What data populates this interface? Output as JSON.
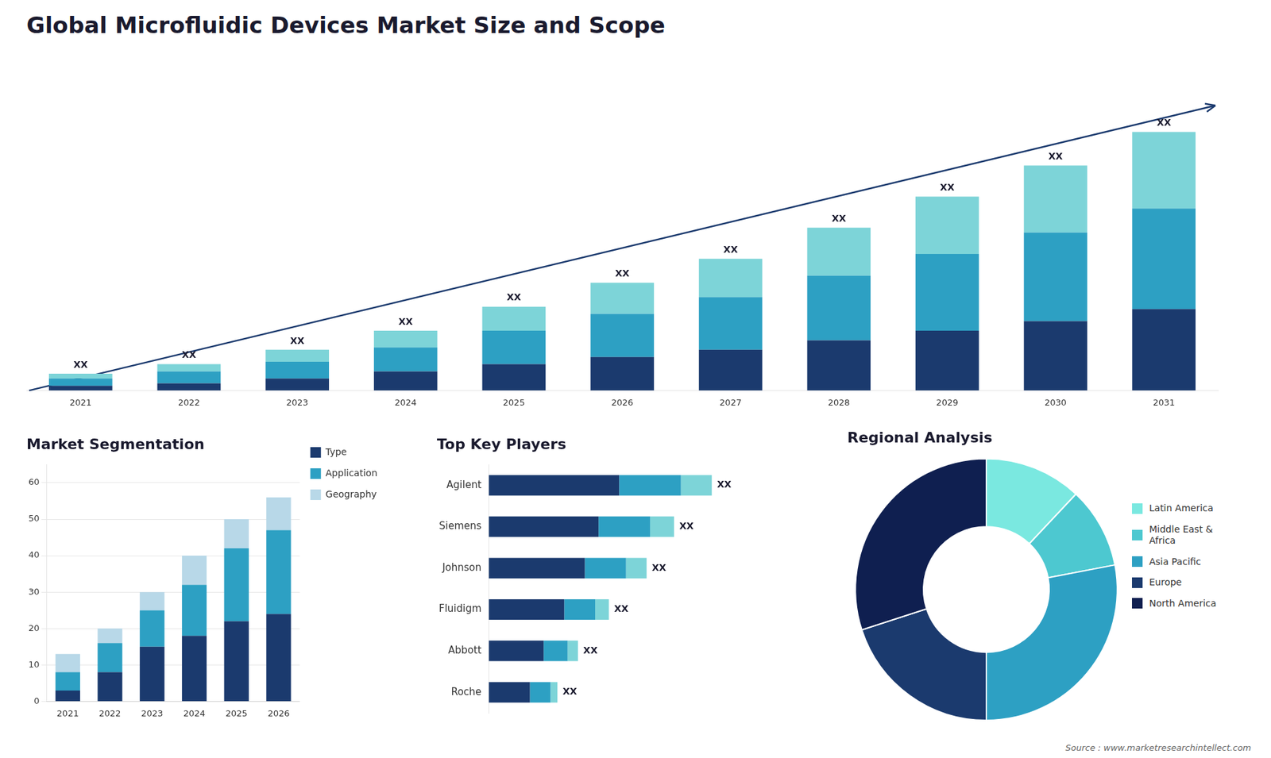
{
  "title": "Global Microfluidic Devices Market Size and Scope",
  "annotations": [
    {
      "text": "Source : www.marketresearchintellect.com"
    }
  ],
  "chart_data": [
    {
      "type": "bar",
      "stacked": true,
      "categories": [
        "2021",
        "2022",
        "2023",
        "2024",
        "2025",
        "2026",
        "2027",
        "2028",
        "2029",
        "2030",
        "2031"
      ],
      "series": [
        {
          "color": "#1b3a6e",
          "values": [
            2,
            3,
            5,
            8,
            11,
            14,
            17,
            21,
            25,
            29,
            34
          ]
        },
        {
          "color": "#2da0c3",
          "values": [
            3,
            5,
            7,
            10,
            14,
            18,
            22,
            27,
            32,
            37,
            42
          ]
        },
        {
          "color": "#7dd4d8",
          "values": [
            2,
            3,
            5,
            7,
            10,
            13,
            16,
            20,
            24,
            28,
            32
          ]
        }
      ],
      "ylim": [
        0,
        138.24
      ],
      "tick_labels": "x",
      "grid": false,
      "annotations": [
        {
          "category": "2021",
          "text": "XX"
        },
        {
          "category": "2022",
          "text": "XX"
        },
        {
          "category": "2023",
          "text": "XX"
        },
        {
          "category": "2024",
          "text": "XX"
        },
        {
          "category": "2025",
          "text": "XX"
        },
        {
          "category": "2026",
          "text": "XX"
        },
        {
          "category": "2027",
          "text": "XX"
        },
        {
          "category": "2028",
          "text": "XX"
        },
        {
          "category": "2029",
          "text": "XX"
        },
        {
          "category": "2030",
          "text": "XX"
        },
        {
          "category": "2031",
          "text": "XX"
        }
      ]
    },
    {
      "type": "bar",
      "stacked": true,
      "title": "Market Segmentation",
      "categories": [
        "2021",
        "2022",
        "2023",
        "2024",
        "2025",
        "2026"
      ],
      "series": [
        {
          "name": "Type",
          "color": "#1b3a6e",
          "values": [
            3,
            8,
            15,
            18,
            22,
            24
          ]
        },
        {
          "name": "Application",
          "color": "#2da0c3",
          "values": [
            5,
            8,
            10,
            14,
            20,
            23
          ]
        },
        {
          "name": "Geography",
          "color": "#b8d8e8",
          "values": [
            5,
            4,
            5,
            8,
            8,
            9
          ]
        }
      ],
      "ylim": [
        0,
        65
      ],
      "yticks": [
        0,
        10,
        20,
        30,
        40,
        50,
        60
      ],
      "grid": true,
      "legend": "right"
    },
    {
      "type": "bar",
      "stacked": true,
      "orientation": "horizontal",
      "title": "Top Key Players",
      "categories": [
        "Agilent",
        "Siemens",
        "Johnson",
        "Fluidigm",
        "Abbott",
        "Roche"
      ],
      "series": [
        {
          "color": "#1b3a6e",
          "values": [
            38,
            32,
            28,
            22,
            16,
            12
          ]
        },
        {
          "color": "#2da0c3",
          "values": [
            18,
            15,
            12,
            9,
            7,
            6
          ]
        },
        {
          "color": "#7dd4d8",
          "values": [
            9,
            7,
            6,
            4,
            3,
            2
          ]
        }
      ],
      "xlim": [
        0,
        89.06
      ],
      "tick_labels": "y",
      "grid": false,
      "annotations": [
        {
          "category": "Agilent",
          "text": "XX"
        },
        {
          "category": "Siemens",
          "text": "XX"
        },
        {
          "category": "Johnson",
          "text": "XX"
        },
        {
          "category": "Fluidigm",
          "text": "XX"
        },
        {
          "category": "Abbott",
          "text": "XX"
        },
        {
          "category": "Roche",
          "text": "XX"
        }
      ]
    },
    {
      "type": "doughnut",
      "title": "Regional Analysis",
      "categories": [
        "Latin America",
        "Middle East &\nAfrica",
        "Asia Pacific",
        "Europe",
        "North America"
      ],
      "values": [
        12,
        10,
        28,
        20,
        30
      ],
      "colors": [
        "#7ae8e0",
        "#4dc8d0",
        "#2da0c3",
        "#1b3a6e",
        "#0f1f50"
      ],
      "legend": "right"
    }
  ]
}
